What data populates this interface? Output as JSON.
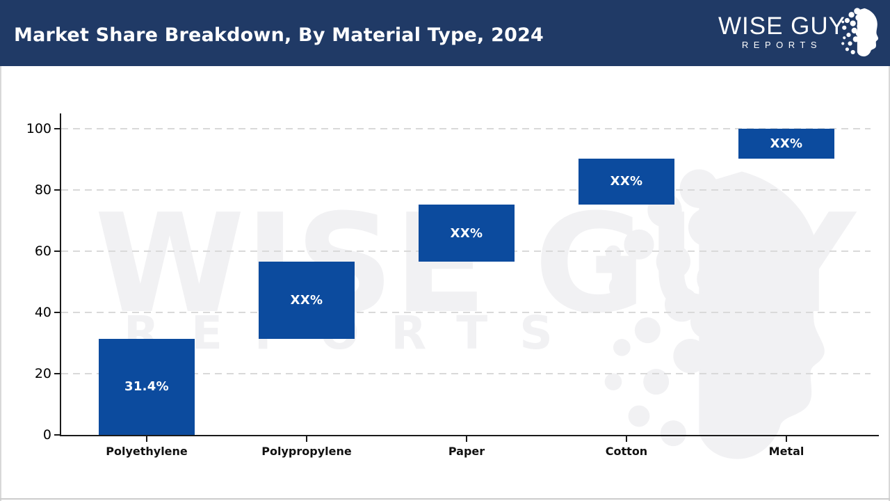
{
  "header": {
    "title": "Market Share Breakdown, By Material Type, 2024",
    "logo": {
      "line1": "WISE GUY",
      "line2": "REPORTS"
    }
  },
  "watermark": {
    "line1": "WISE GUY",
    "line2": "REPORTS"
  },
  "colors": {
    "header_bg": "#203A66",
    "bar": "#0C4B9E",
    "bar_label": "#FFFFFF",
    "grid": "#D9D9D9",
    "axis": "#1A1A1A",
    "watermark": "#F1F1F3"
  },
  "chart_data": {
    "type": "bar",
    "variant": "waterfall",
    "title": "Market Share Breakdown, By Material Type, 2024",
    "categories": [
      "Polyethylene",
      "Polypropylene",
      "Paper",
      "Cotton",
      "Metal"
    ],
    "segments": [
      {
        "category": "Polyethylene",
        "start": 0,
        "end": 31.4,
        "value": 31.4,
        "label": "31.4%"
      },
      {
        "category": "Polypropylene",
        "start": 31.4,
        "end": 56.5,
        "value": 25.1,
        "label": "XX%"
      },
      {
        "category": "Paper",
        "start": 56.5,
        "end": 75.3,
        "value": 18.8,
        "label": "XX%"
      },
      {
        "category": "Cotton",
        "start": 75.3,
        "end": 90.3,
        "value": 15.0,
        "label": "XX%"
      },
      {
        "category": "Metal",
        "start": 90.3,
        "end": 100,
        "value": 9.7,
        "label": "XX%"
      }
    ],
    "xlabel": "",
    "ylabel": "",
    "ylim": [
      0,
      105
    ],
    "yticks": [
      0,
      20,
      40,
      60,
      80,
      100
    ],
    "grid": "horizontal-dashed",
    "legend": "none"
  }
}
